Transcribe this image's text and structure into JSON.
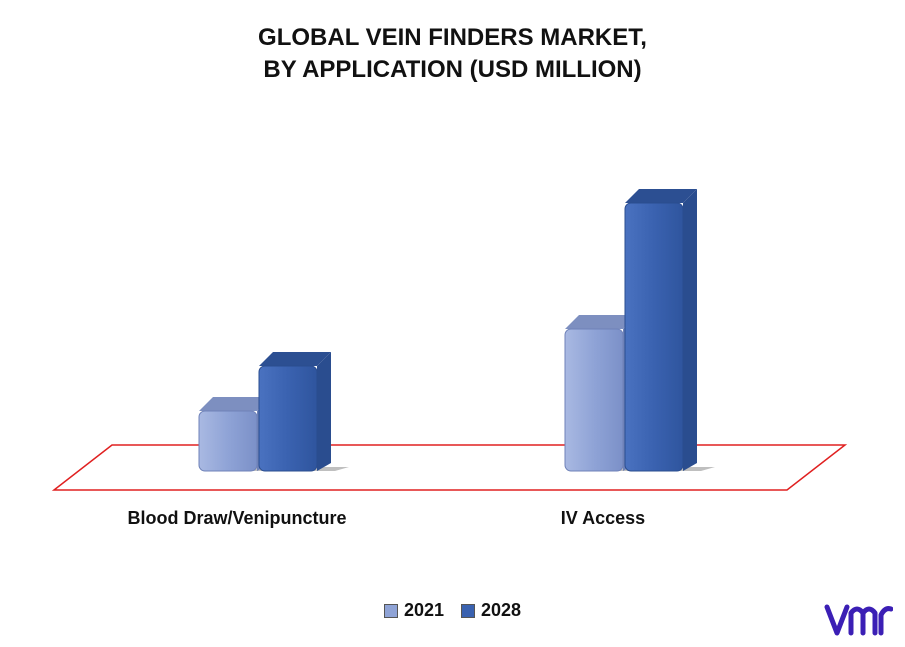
{
  "title_line1": "GLOBAL VEIN FINDERS MARKET,",
  "title_line2": "BY APPLICATION (USD MILLION)",
  "colors": {
    "s2021": "#8fa3d6",
    "s2028": "#3a62b0",
    "floor": "#e02020",
    "logo": "#3b1fb5"
  },
  "chart_data": {
    "type": "bar",
    "title": "GLOBAL VEIN FINDERS MARKET, BY APPLICATION (USD MILLION)",
    "categories": [
      "Blood Draw/Venipuncture",
      "IV Access"
    ],
    "series": [
      {
        "name": "2021",
        "values": [
          60,
          142
        ]
      },
      {
        "name": "2028",
        "values": [
          105,
          268
        ]
      }
    ],
    "ylim": [
      0,
      300
    ],
    "grid": false,
    "legend": "bottom-center",
    "xlabel": "",
    "ylabel": ""
  },
  "legend": {
    "item1": "2021",
    "item2": "2028"
  },
  "logo_icon": "vmr-logo"
}
